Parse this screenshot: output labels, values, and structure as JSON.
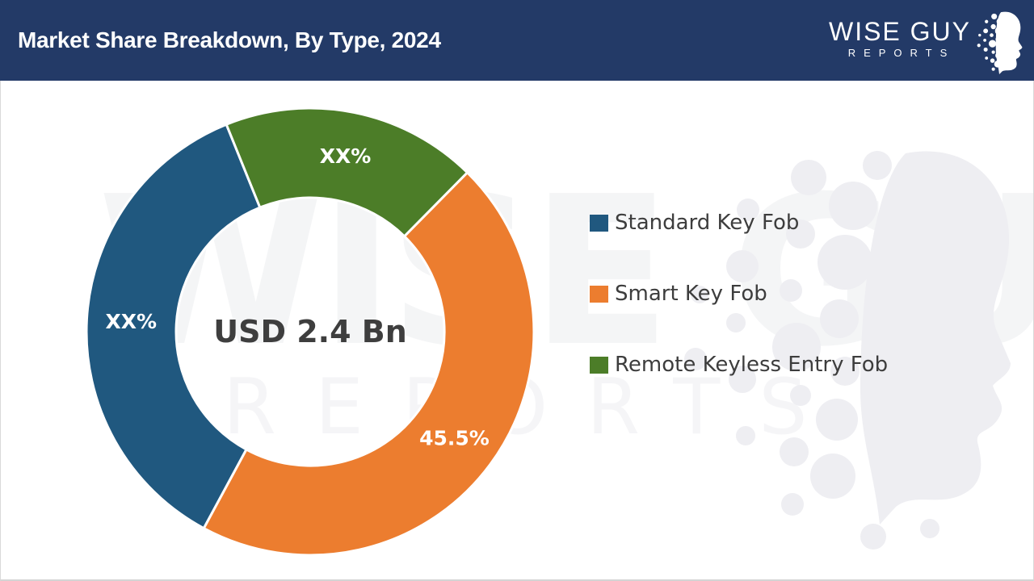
{
  "header": {
    "title": "Market Share Breakdown, By Type, 2024",
    "logo": {
      "name": "WISE GUY",
      "tagline": "REPORTS"
    }
  },
  "chart_data": {
    "type": "pie",
    "subtype": "donut",
    "title": "Market Share Breakdown, By Type, 2024",
    "center_label": "USD 2.4 Bn",
    "start_angle_deg": -22,
    "direction": "counterclockwise",
    "legend_position": "right",
    "slices": [
      {
        "label": "Standard Key Fob",
        "display_value": "XX%",
        "value_pct_est": 36.0,
        "color": "#20587F"
      },
      {
        "label": "Smart Key Fob",
        "display_value": "45.5%",
        "value_pct_est": 45.5,
        "color": "#EC7D2F"
      },
      {
        "label": "Remote Keyless Entry Fob",
        "display_value": "XX%",
        "value_pct_est": 18.5,
        "color": "#4C7D28"
      }
    ]
  },
  "watermark": {
    "line1": "WISE GUY",
    "line2": "REPORTS"
  },
  "colors": {
    "header_bg": "#233A67",
    "center_text": "#3E3E3E",
    "legend_text": "#3D3D3D",
    "canvas_border": "#d9d9d9"
  }
}
